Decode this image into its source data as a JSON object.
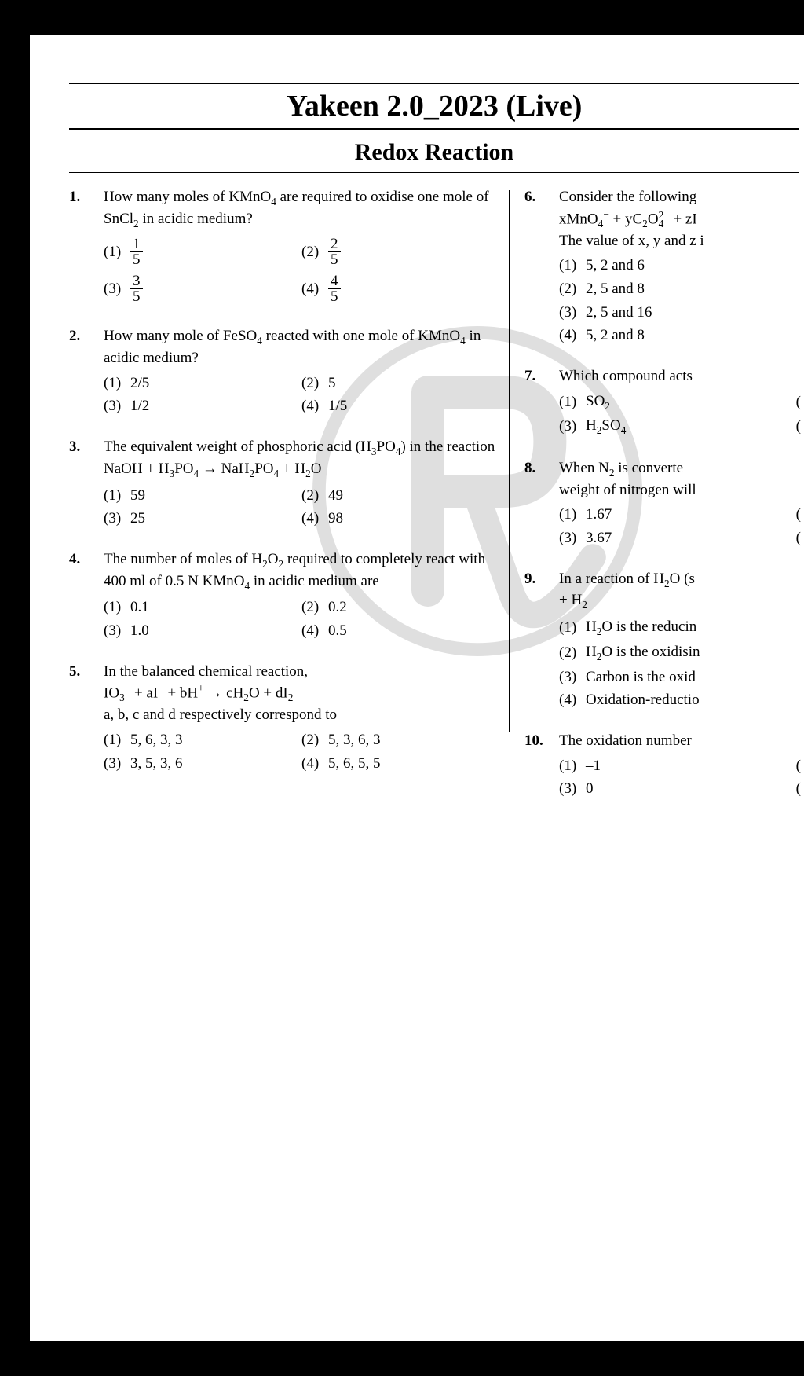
{
  "header": {
    "title": "Yakeen 2.0_2023 (Live)",
    "subtitle": "Redox Reaction"
  },
  "left_questions": [
    {
      "num": "1.",
      "text_html": "How many moles of KMnO<sub>4</sub> are required to oxidise one mole of SnCl<sub>2</sub> in acidic medium?",
      "layout": "two-frac",
      "options": [
        {
          "n": "(1)",
          "num": "1",
          "den": "5"
        },
        {
          "n": "(2)",
          "num": "2",
          "den": "5"
        },
        {
          "n": "(3)",
          "num": "3",
          "den": "5"
        },
        {
          "n": "(4)",
          "num": "4",
          "den": "5"
        }
      ]
    },
    {
      "num": "2.",
      "text_html": "How many mole of FeSO<sub>4</sub> reacted with one mole of KMnO<sub>4</sub> in acidic medium?",
      "layout": "two",
      "options": [
        {
          "n": "(1)",
          "t": "2/5"
        },
        {
          "n": "(2)",
          "t": "5"
        },
        {
          "n": "(3)",
          "t": "1/2"
        },
        {
          "n": "(4)",
          "t": "1/5"
        }
      ]
    },
    {
      "num": "3.",
      "text_html": "The equivalent weight of phosphoric acid (H<sub>3</sub>PO<sub>4</sub>) in the reaction<br>NaOH + H<sub>3</sub>PO<sub>4</sub> → NaH<sub>2</sub>PO<sub>4</sub> + H<sub>2</sub>O",
      "layout": "two",
      "options": [
        {
          "n": "(1)",
          "t": "59"
        },
        {
          "n": "(2)",
          "t": "49"
        },
        {
          "n": "(3)",
          "t": "25"
        },
        {
          "n": "(4)",
          "t": "98"
        }
      ]
    },
    {
      "num": "4.",
      "text_html": "The number of moles of H<sub>2</sub>O<sub>2</sub> required to completely react with 400 ml of 0.5 N KMnO<sub>4</sub> in acidic medium are",
      "layout": "two",
      "options": [
        {
          "n": "(1)",
          "t": "0.1"
        },
        {
          "n": "(2)",
          "t": "0.2"
        },
        {
          "n": "(3)",
          "t": "1.0"
        },
        {
          "n": "(4)",
          "t": "0.5"
        }
      ]
    },
    {
      "num": "5.",
      "text_html": "In the balanced chemical reaction,<br>IO<sub>3</sub><sup>−</sup> + aI<sup>−</sup> + bH<sup>+</sup> → cH<sub>2</sub>O + dI<sub>2</sub><br>a, b, c and d respectively correspond to",
      "layout": "two",
      "options": [
        {
          "n": "(1)",
          "t": "5, 6, 3, 3"
        },
        {
          "n": "(2)",
          "t": "5, 3, 6, 3"
        },
        {
          "n": "(3)",
          "t": "3, 5, 3, 6"
        },
        {
          "n": "(4)",
          "t": "5, 6, 5, 5"
        }
      ]
    }
  ],
  "right_questions": [
    {
      "num": "6.",
      "text_html": "Consider the following<br>xMnO<sub>4</sub><sup>−</sup> + yC<sub>2</sub>O<span class=\"subsup\"><span>2−</span><span>4</span></span> + zI<br>The value of x, y and z i",
      "layout": "full",
      "options": [
        {
          "n": "(1)",
          "t": "5, 2 and 6"
        },
        {
          "n": "(2)",
          "t": "2, 5 and 8"
        },
        {
          "n": "(3)",
          "t": "2, 5 and 16"
        },
        {
          "n": "(4)",
          "t": "5, 2 and 8"
        }
      ]
    },
    {
      "num": "7.",
      "text_html": "Which compound acts ",
      "layout": "full-trail",
      "options": [
        {
          "n": "(1)",
          "t_html": "SO<sub>2</sub>",
          "trail": "("
        },
        {
          "n": "(3)",
          "t_html": "H<sub>2</sub>SO<sub>4</sub>",
          "trail": "("
        }
      ]
    },
    {
      "num": "8.",
      "text_html": "When N<sub>2</sub> is converte<br>weight of nitrogen will",
      "layout": "full-trail",
      "options": [
        {
          "n": "(1)",
          "t": "1.67",
          "trail": "("
        },
        {
          "n": "(3)",
          "t": "3.67",
          "trail": "("
        }
      ]
    },
    {
      "num": "9.",
      "text_html": "In a reaction of H<sub>2</sub>O (s<br>+ H<sub>2</sub>",
      "layout": "full",
      "options": [
        {
          "n": "(1)",
          "t_html": "H<sub>2</sub>O is the reducin"
        },
        {
          "n": "(2)",
          "t_html": "H<sub>2</sub>O is the oxidisin"
        },
        {
          "n": "(3)",
          "t": "Carbon is the oxid"
        },
        {
          "n": "(4)",
          "t": "Oxidation-reductio"
        }
      ]
    },
    {
      "num": "10.",
      "text_html": "The oxidation number ",
      "layout": "full-trail",
      "options": [
        {
          "n": "(1)",
          "t": "–1",
          "trail": "("
        },
        {
          "n": "(3)",
          "t": "0",
          "trail": "("
        }
      ]
    }
  ]
}
